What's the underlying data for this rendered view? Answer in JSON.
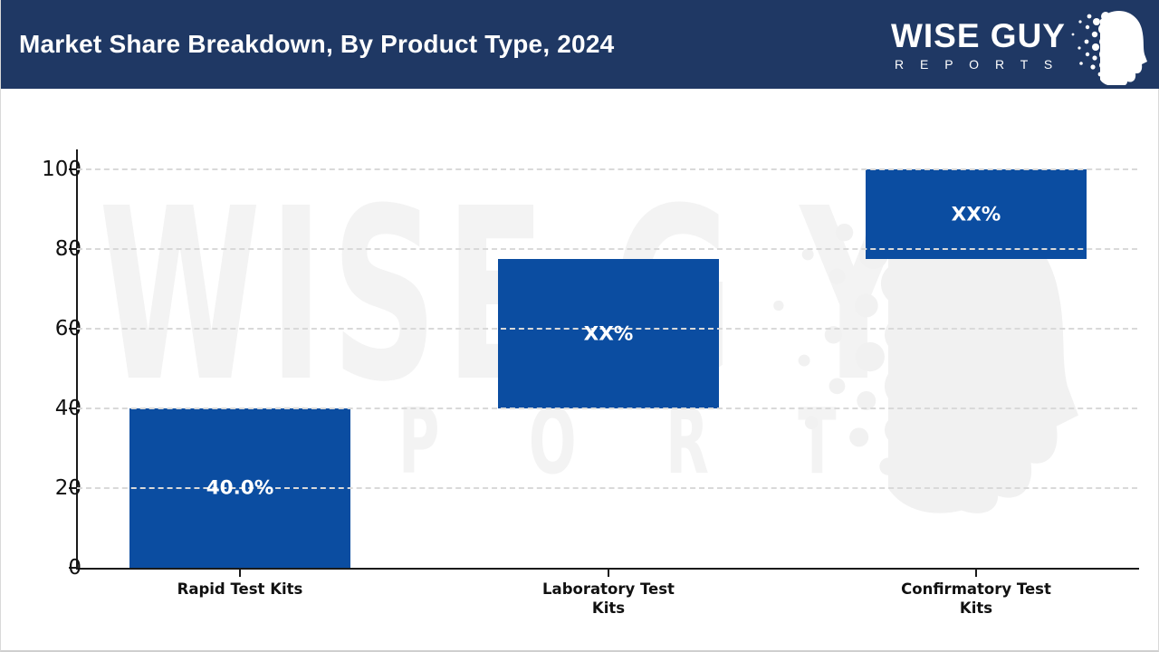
{
  "header": {
    "title": "Market Share Breakdown, By Product Type, 2024",
    "brand": {
      "name_line": "WISE GUY",
      "sub_line": "R E P O R T S"
    },
    "bg_color": "#1f3864"
  },
  "watermark": {
    "line1": "WISE G Y",
    "line2": "R E P O R T S"
  },
  "chart_data": {
    "type": "bar",
    "variant": "stacked_waterfall",
    "title": "Market Share Breakdown, By Product Type, 2024",
    "unit": "percent market share",
    "categories": [
      "Rapid Test Kits",
      "Laboratory Test\nKits",
      "Confirmatory Test\nKits"
    ],
    "segments": [
      {
        "category": "Rapid Test Kits",
        "start": 0,
        "end": 40,
        "label": "40.0%"
      },
      {
        "category": "Laboratory Test Kits",
        "start": 40,
        "end": 77.5,
        "label": "XX%"
      },
      {
        "category": "Confirmatory Test Kits",
        "start": 77.5,
        "end": 100,
        "label": "XX%"
      }
    ],
    "yticks": [
      0,
      20,
      40,
      60,
      80,
      100
    ],
    "ylim": [
      0,
      105
    ],
    "grid": {
      "horizontal": true,
      "style": "dashed",
      "above_bars": true
    },
    "legend": null,
    "colors": {
      "bar": "#0b4da1",
      "grid": "#d9d9d9",
      "axis": "#1a1a1a",
      "header_bg": "#1f3864",
      "bar_label_text": "#ffffff",
      "watermark": "#f3f3f3"
    }
  }
}
